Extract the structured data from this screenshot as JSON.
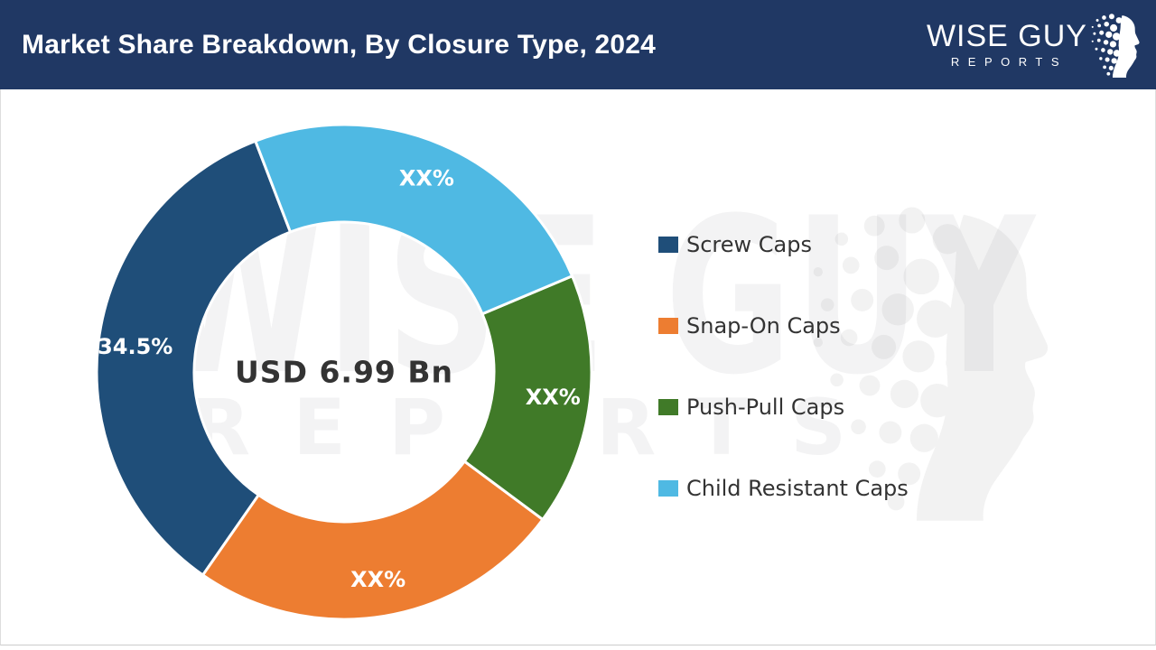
{
  "header": {
    "title": "Market Share Breakdown, By Closure Type, 2024",
    "bg_color": "#203864",
    "logo": {
      "line1": "WISE GUY",
      "line2": "REPORTS"
    }
  },
  "watermark": {
    "line1": "WISE GUY",
    "line2": "REPORTS"
  },
  "chart_data": {
    "type": "pie",
    "subtype": "donut",
    "title": "Market Share Breakdown, By Closure Type, 2024",
    "center_label": "USD 6.99 Bn",
    "start_angle_deg": 111,
    "direction": "counterclockwise",
    "legend_position": "right",
    "segments": [
      {
        "label": "Screw Caps",
        "value_pct": 34.5,
        "display_label": "34.5%",
        "color": "#1F4E79"
      },
      {
        "label": "Snap-On Caps",
        "value_pct": 24.5,
        "display_label": "XX%",
        "color": "#ED7D31"
      },
      {
        "label": "Push-Pull Caps",
        "value_pct": 16.5,
        "display_label": "XX%",
        "color": "#407A28"
      },
      {
        "label": "Child Resistant Caps",
        "value_pct": 24.5,
        "display_label": "XX%",
        "color": "#4FB9E3"
      }
    ]
  }
}
